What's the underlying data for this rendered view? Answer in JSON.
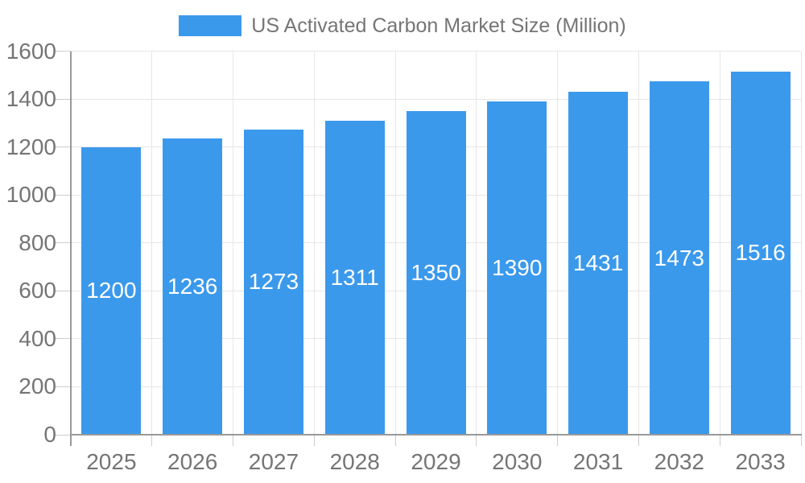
{
  "legend": {
    "label": "US Activated Carbon Market Size (Million)"
  },
  "chart_data": {
    "type": "bar",
    "title": "US Activated Carbon Market Size (Million)",
    "categories": [
      "2025",
      "2026",
      "2027",
      "2028",
      "2029",
      "2030",
      "2031",
      "2032",
      "2033"
    ],
    "values": [
      1200,
      1236,
      1273,
      1311,
      1350,
      1390,
      1431,
      1473,
      1516
    ],
    "xlabel": "",
    "ylabel": "",
    "ylim": [
      0,
      1600
    ],
    "yticks": [
      0,
      200,
      400,
      600,
      800,
      1000,
      1200,
      1400,
      1600
    ],
    "grid": true,
    "legend_position": "top",
    "colors": {
      "bar": "#3B99EC",
      "value_label": "#FFFFFF",
      "axis_text": "#757575",
      "grid_line": "#E6E6E6",
      "tick_line": "#CCCCCC",
      "axis_line": "#999999",
      "background": "#FFFFFF"
    }
  }
}
